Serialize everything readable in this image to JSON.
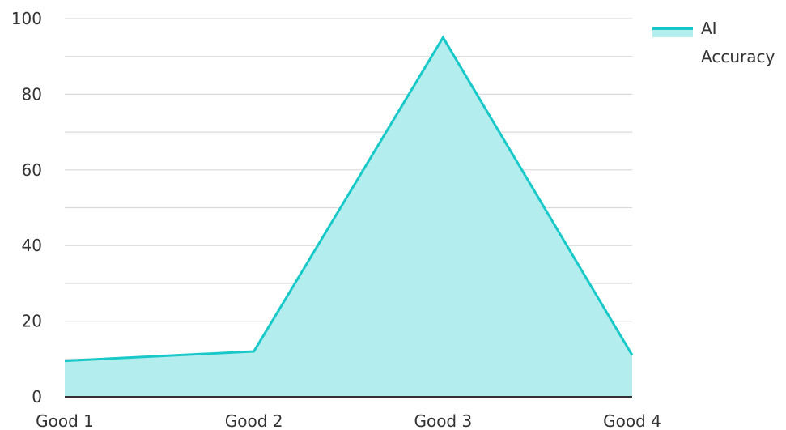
{
  "chart_data": {
    "type": "area",
    "categories": [
      "Good 1",
      "Good 2",
      "Good 3",
      "Good 4"
    ],
    "series": [
      {
        "name": "AI Accuracy",
        "values": [
          9.5,
          12,
          95,
          11
        ]
      }
    ],
    "title": "",
    "xlabel": "",
    "ylabel": "",
    "ylim": [
      0,
      100
    ],
    "yticks": [
      "0",
      "20",
      "40",
      "60",
      "80",
      "100"
    ],
    "grid": true,
    "legend": {
      "position": "top-right",
      "label_lines": [
        "AI",
        "Accuracy"
      ]
    },
    "colors": {
      "line": "#19c8c8",
      "fill": "#b3eded",
      "grid": "#d9d9d9",
      "axis": "#333333"
    }
  }
}
